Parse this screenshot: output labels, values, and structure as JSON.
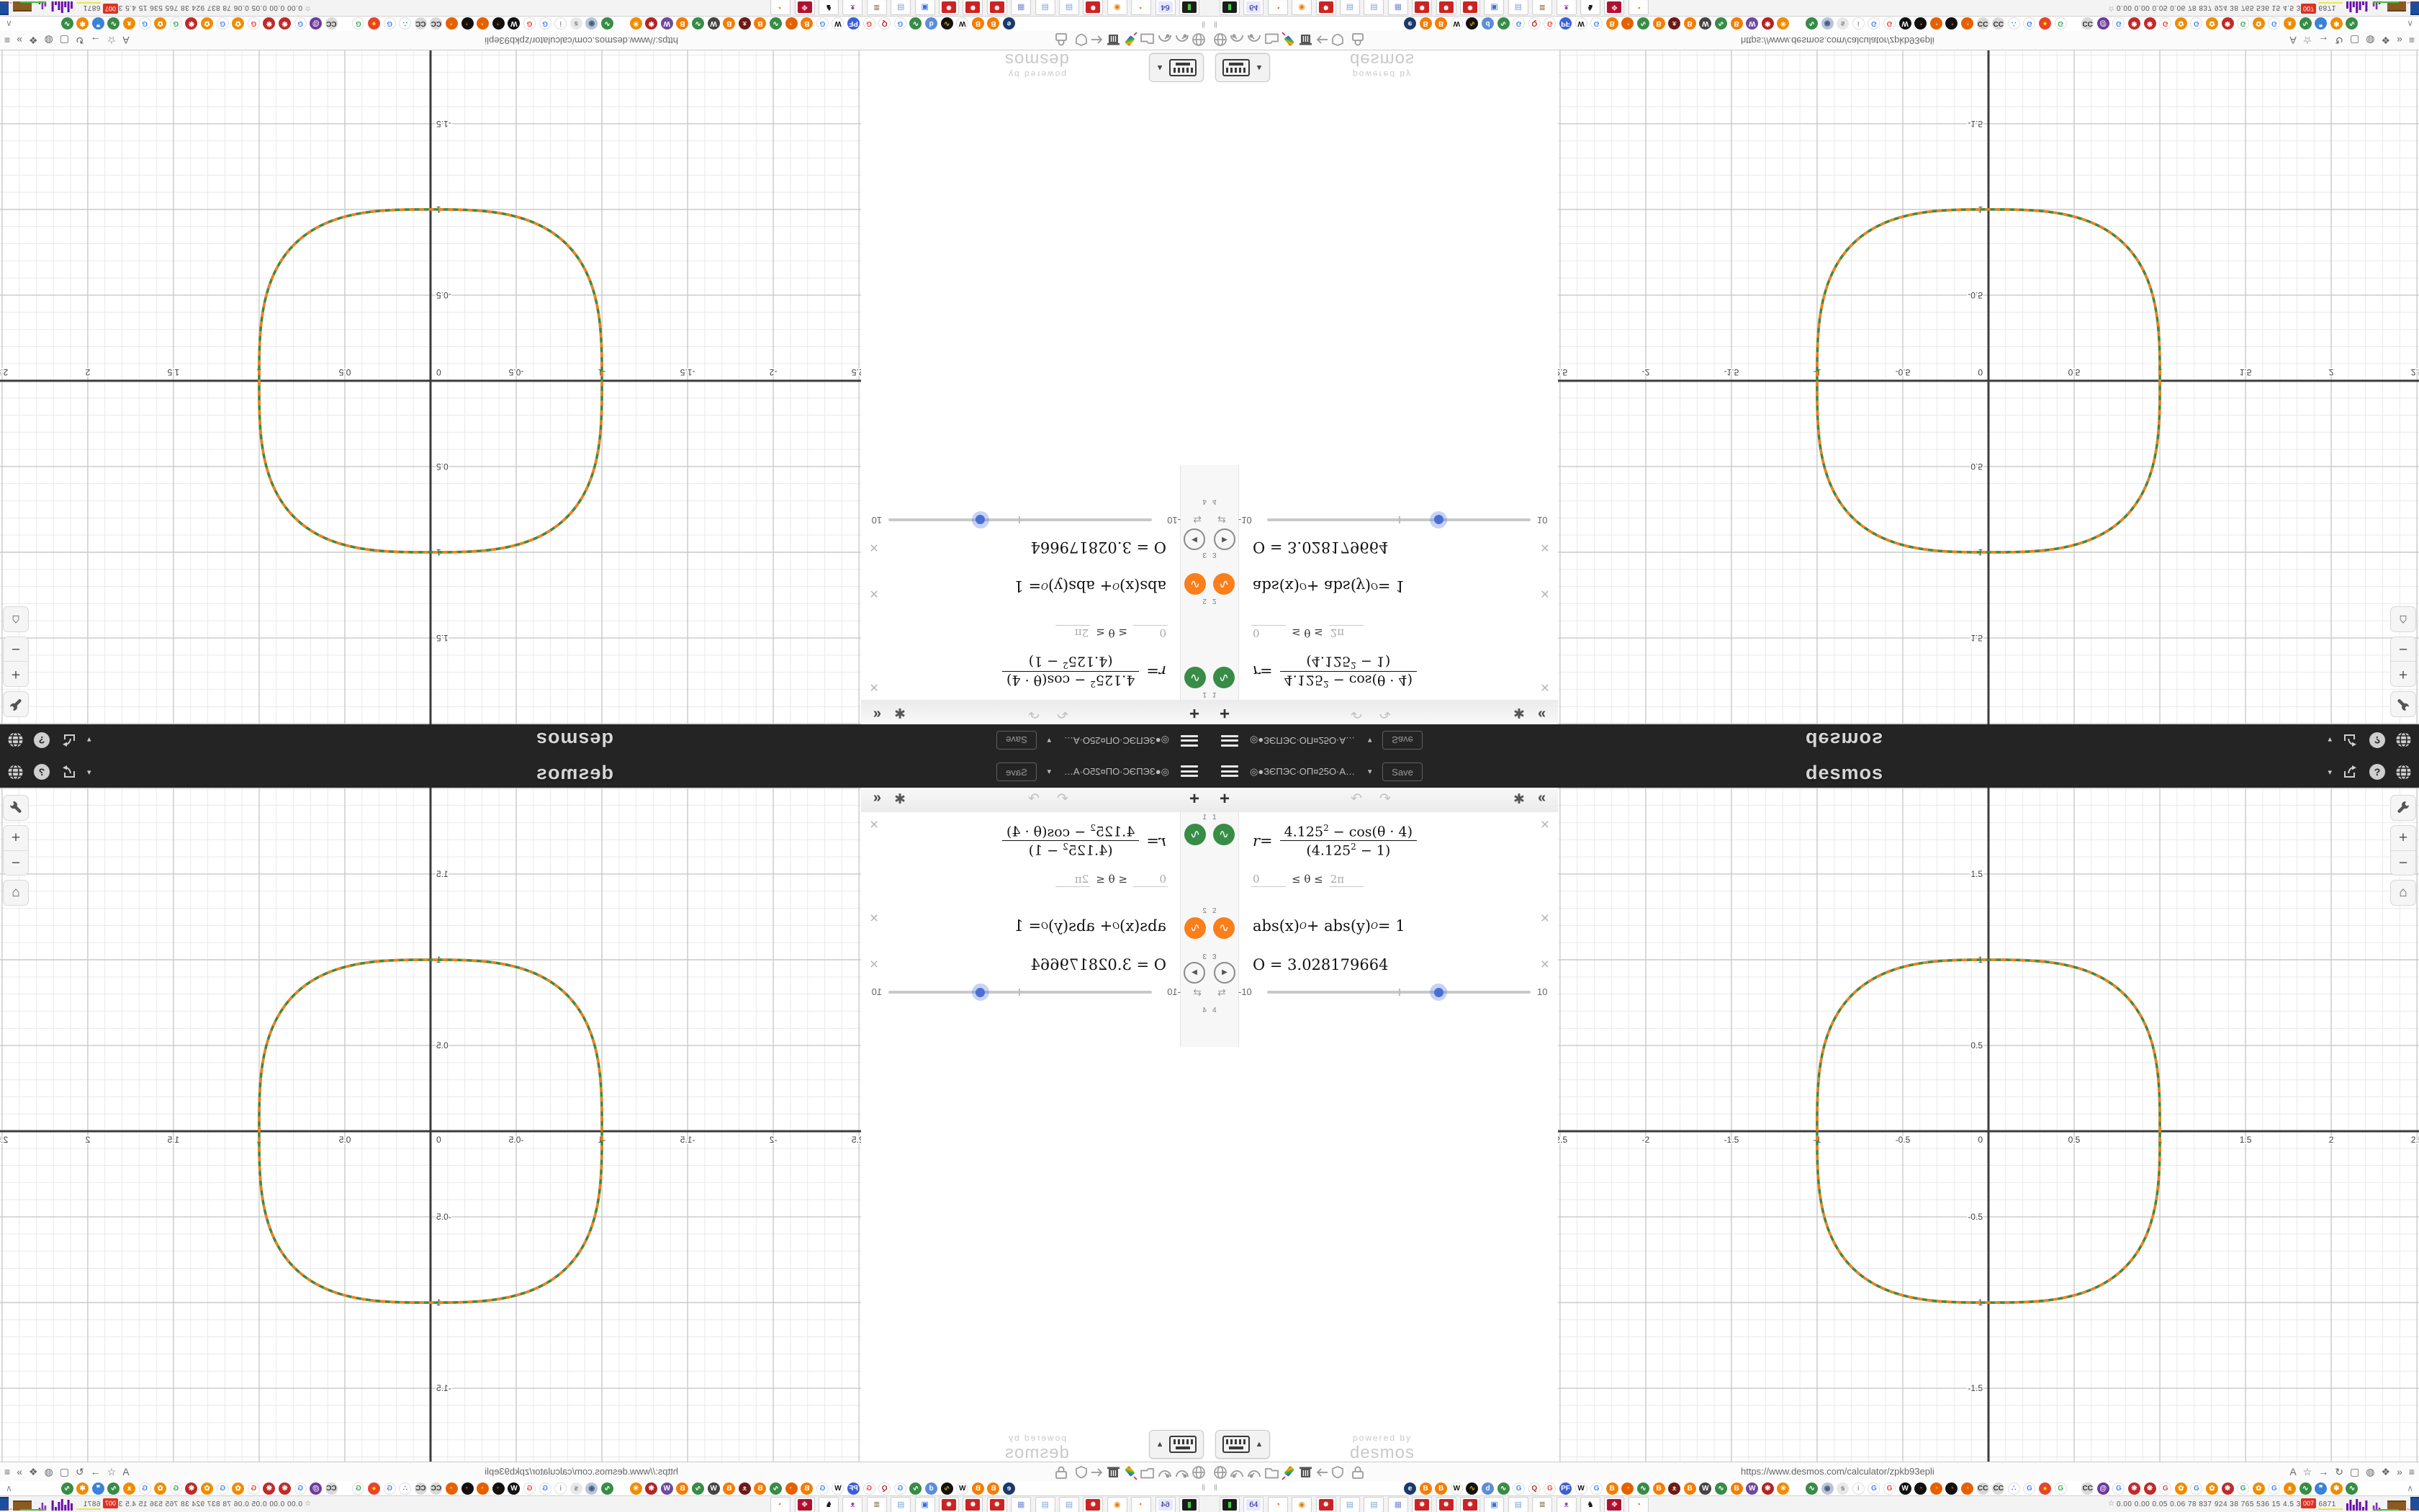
{
  "header": {
    "title": "◎●ЗЄПЭС·ОП¤25О·А…",
    "save_label": "Save",
    "logo": "desmos",
    "right_icons": [
      "account-caret",
      "share",
      "help",
      "language-globe"
    ]
  },
  "panel": {
    "toolbar": {
      "add": "+",
      "undo": "↶",
      "redo": "↷",
      "gear": "✱",
      "collapse": "«"
    },
    "rows": {
      "r1": {
        "index": "1",
        "full_text": "r = (4.125² − cos(θ·4)) / (4.125² − 1)",
        "lhs": "r",
        "eq": " = ",
        "num_base": "4.125",
        "num_sup": "2",
        "num_rest": " − cos(θ · 4)",
        "den_base": "(4.125",
        "den_sup": "2",
        "den_rest": " − 1)",
        "icon": "∿",
        "domain_min": "0",
        "domain_mid": "≤ θ ≤",
        "domain_max": "2π"
      },
      "r2": {
        "index": "2",
        "full_text": "abs(x)^O + abs(y)^O = 1",
        "a": "abs(x)",
        "asup": "O",
        "b": " + abs(y)",
        "bsup": "O",
        "c": " = 1",
        "icon": "∿"
      },
      "r3": {
        "index": "3",
        "value_text": "O = 3.028179664",
        "play_icon": "▶",
        "loop_icon": "⇄"
      },
      "r4": {
        "index": "4"
      }
    },
    "slider": {
      "min": -10,
      "max": 10,
      "value": 3.028179664,
      "min_label": "-10",
      "max_label": "10"
    },
    "close_glyph": "×",
    "watermark_small": "powered by",
    "watermark_big": "desmos"
  },
  "graph_buttons": {
    "zoom_in": "+",
    "zoom_out": "−",
    "home": "⌂"
  },
  "chart_data": {
    "type": "line",
    "equations": [
      {
        "label": "r = (4.125² − cos(θ·4)) / (4.125² − 1)",
        "color": "#388c46",
        "domain": "0 ≤ θ ≤ 2π"
      },
      {
        "label": "abs(x)^O + abs(y)^O = 1",
        "color": "#fa7e19"
      }
    ],
    "parameter": {
      "name": "O",
      "value": 3.028179664,
      "min": -10,
      "max": 10
    },
    "exponent": 3.028179664,
    "xlim": [
      -2.512,
      2.512
    ],
    "ylim": [
      -1.929,
      2.004
    ],
    "x_tick_labels": [
      -2.5,
      -2,
      -1.5,
      -1,
      -0.5,
      0.5,
      1,
      1.5,
      2,
      2.5
    ],
    "y_tick_labels": [
      1.5,
      1,
      0.5,
      -0.5,
      -1,
      -1.5
    ],
    "origin_label": "0",
    "grid": {
      "minor_step": 0.1,
      "major_step": 0.5,
      "shown": true
    },
    "colors": {
      "axis": "#3c3c3c",
      "major": "#c9c9c9",
      "minor": "#e9e9e9",
      "label": "#3d3d3d",
      "curve_green": "#388c46",
      "curve_orange": "#fa7e19"
    }
  },
  "statusbar": {
    "url": "https://www.desmos.com/calculator/zpkb93epli",
    "left_icons": [
      "globe",
      "gauge",
      "gauge",
      "folder",
      "rainbow-pin",
      "trash",
      "back-arrow",
      "shield",
      "lock"
    ],
    "right_icons": [
      {
        "glyph": "A",
        "name": "translate-icon"
      },
      {
        "glyph": "☆",
        "name": "bookmark-star-icon"
      },
      {
        "glyph": "→",
        "name": "forward-icon"
      },
      {
        "glyph": "↻",
        "name": "reload-icon"
      },
      {
        "glyph": "▢",
        "name": "reader-view-icon"
      },
      {
        "glyph": "◍",
        "name": "extensions-globe-icon"
      },
      {
        "glyph": "❖",
        "name": "puzzle-extension-icon"
      },
      {
        "glyph": "»",
        "name": "overflow-chevron-icon"
      },
      {
        "glyph": "≡",
        "name": "browser-menu-icon"
      }
    ]
  },
  "bookmarks": {
    "grip": "‖",
    "chevron": "∧",
    "start_x": 270,
    "step": 21.6,
    "favicons": [
      {
        "b": "#1b3a6b",
        "t": "e",
        "c": "#fff"
      },
      {
        "b": "#f57d00",
        "t": "B",
        "c": "#fff"
      },
      {
        "b": "#f57d00",
        "t": "B",
        "c": "#fff"
      },
      {
        "b": "#ffffff",
        "t": "W",
        "c": "#111",
        "o": 1
      },
      {
        "b": "#111111",
        "t": "∿",
        "c": "#d4a017"
      },
      {
        "b": "#5b8dd9",
        "t": "d",
        "c": "#fff"
      },
      {
        "b": "#388c46",
        "t": "∿",
        "c": "#fff"
      },
      {
        "b": "#ffffff",
        "t": "G",
        "c": "#4285f4",
        "o": 1
      },
      {
        "b": "#ffffff",
        "t": "Q",
        "c": "#b92b27",
        "o": 1
      },
      {
        "b": "#ffffff",
        "t": "G",
        "c": "#ea4335",
        "o": 1
      },
      {
        "b": "#3b5fd9",
        "t": "PF",
        "c": "#fff"
      },
      {
        "b": "#ffffff",
        "t": "W",
        "c": "#111",
        "o": 1
      },
      {
        "b": "#ffffff",
        "t": "G",
        "c": "#4285f4",
        "o": 1
      },
      {
        "b": "#f57d00",
        "t": "B",
        "c": "#fff"
      },
      {
        "b": "#e66000",
        "t": "◔",
        "c": "#ffd27d"
      },
      {
        "b": "#388c46",
        "t": "∿",
        "c": "#fff"
      },
      {
        "b": "#f57d00",
        "t": "B",
        "c": "#fff"
      },
      {
        "b": "#6b1a1a",
        "t": "ᴥ",
        "c": "#e8c8a8"
      },
      {
        "b": "#f57d00",
        "t": "B",
        "c": "#fff"
      },
      {
        "b": "#464342",
        "t": "W",
        "c": "#fff"
      },
      {
        "b": "#388c46",
        "t": "∿",
        "c": "#fff"
      },
      {
        "b": "#f57d00",
        "t": "B",
        "c": "#fff"
      },
      {
        "b": "#6d4a9e",
        "t": "W",
        "c": "#fff"
      },
      {
        "b": "#b32424",
        "t": "❋",
        "c": "#fff"
      },
      {
        "b": "#f08c00",
        "t": "✳",
        "c": "#fff"
      },
      {
        "b": "#388c46",
        "t": "∿",
        "c": "#fff",
        "g": 18
      },
      {
        "b": "#b8c4d8",
        "t": "◉",
        "c": "#445a7a"
      },
      {
        "b": "#e8e8e8",
        "t": "s",
        "c": "#777"
      },
      {
        "b": "#ffffff",
        "t": "i",
        "c": "#999",
        "o": 1
      },
      {
        "b": "#ffffff",
        "t": "G",
        "c": "#4285f4",
        "o": 1
      },
      {
        "b": "#ffffff",
        "t": "G",
        "c": "#ea4335",
        "o": 1
      },
      {
        "b": "#111111",
        "t": "W",
        "c": "#fff"
      },
      {
        "b": "#111111",
        "t": "◔",
        "c": "#e66000"
      },
      {
        "b": "#e66000",
        "t": "◔",
        "c": "#ffd27d"
      },
      {
        "b": "#111111",
        "t": "◔",
        "c": "#e66000"
      },
      {
        "b": "#e66000",
        "t": "◔",
        "c": "#ffd27d"
      },
      {
        "b": "#d8d8d8",
        "t": "CC",
        "c": "#333"
      },
      {
        "b": "#d8d8d8",
        "t": "CC",
        "c": "#333"
      },
      {
        "b": "#ffffff",
        "t": "∴",
        "c": "#3b6fd9",
        "o": 1
      },
      {
        "b": "#ffffff",
        "t": "G",
        "c": "#4285f4",
        "o": 1
      },
      {
        "b": "#e8442c",
        "t": "●",
        "c": "#ffd700"
      },
      {
        "b": "#ffffff",
        "t": "G",
        "c": "#34a853",
        "o": 1
      },
      {
        "b": "#d8d8d8",
        "t": "CC",
        "c": "#333",
        "g": 16
      },
      {
        "b": "#6d3a9e",
        "t": "@",
        "c": "#fff"
      },
      {
        "b": "#ffffff",
        "t": "G",
        "c": "#4285f4",
        "o": 1
      },
      {
        "b": "#c02a2a",
        "t": "❋",
        "c": "#fff"
      },
      {
        "b": "#c02a2a",
        "t": "❋",
        "c": "#fff"
      },
      {
        "b": "#ffffff",
        "t": "G",
        "c": "#ea4335",
        "o": 1
      },
      {
        "b": "#f08c00",
        "t": "✿",
        "c": "#fff"
      },
      {
        "b": "#ffffff",
        "t": "G",
        "c": "#4285f4",
        "o": 1
      },
      {
        "b": "#f08c00",
        "t": "✿",
        "c": "#fff"
      },
      {
        "b": "#c02a2a",
        "t": "❋",
        "c": "#fff"
      },
      {
        "b": "#ffffff",
        "t": "G",
        "c": "#34a853",
        "o": 1
      },
      {
        "b": "#f08c00",
        "t": "✿",
        "c": "#fff"
      },
      {
        "b": "#ffffff",
        "t": "G",
        "c": "#4285f4",
        "o": 1
      },
      {
        "b": "#f08c00",
        "t": "ᴥ",
        "c": "#fff"
      },
      {
        "b": "#388c46",
        "t": "∿",
        "c": "#fff"
      },
      {
        "b": "#3b82d9",
        "t": "❞",
        "c": "#fff"
      },
      {
        "b": "#f08c00",
        "t": "✱",
        "c": "#fff"
      },
      {
        "b": "#388c46",
        "t": "∿",
        "c": "#fff"
      }
    ]
  },
  "taskbar": {
    "start_x": 14,
    "step": 33.4,
    "icons": [
      {
        "b": "#1c1c1c",
        "t": "▮",
        "c": "#44cc44"
      },
      {
        "b": "#e8e8ff",
        "t": "64",
        "c": "#22229a"
      },
      {
        "b": "#ffffff",
        "t": "◔",
        "c": "#e66000"
      },
      {
        "b": "#ffffff",
        "t": "◉",
        "c": "#e87d0d"
      },
      {
        "b": "#cc2222",
        "t": "✸",
        "c": "#ffffff"
      },
      {
        "b": "#ffffff",
        "t": "▤",
        "c": "#7aa7d9"
      },
      {
        "b": "#ffffff",
        "t": "▤",
        "c": "#7aa7d9"
      },
      {
        "b": "#ffffff",
        "t": "▦",
        "c": "#7a8fd9"
      },
      {
        "b": "#cc2222",
        "t": "✸",
        "c": "#ffffff"
      },
      {
        "b": "#cc2222",
        "t": "✸",
        "c": "#ffffff"
      },
      {
        "b": "#cc2222",
        "t": "✸",
        "c": "#ffffff"
      },
      {
        "b": "#ffffff",
        "t": "▣",
        "c": "#3b6fd9"
      },
      {
        "b": "#ffffff",
        "t": "▤",
        "c": "#7aa7d9"
      },
      {
        "b": "#ffffff",
        "t": "≣",
        "c": "#8a6a3a"
      },
      {
        "b": "#ffffff",
        "t": "ᴥ",
        "c": "#a03ab0"
      },
      {
        "b": "#ffffff",
        "t": "♞",
        "c": "#111111"
      },
      {
        "b": "#b01030",
        "t": "❖",
        "c": "#ffdddd"
      },
      {
        "b": "#ffffff",
        "t": "◔",
        "c": "#e66000"
      }
    ],
    "tray": {
      "star": "☆",
      "numbers": "0.00 0.00 0.05 0.06 78 837 924 38 765 536 15 4.5 32 25 6871",
      "badge": "007",
      "hist_heights": [
        10,
        15,
        8,
        16,
        12,
        5,
        14
      ],
      "hist_mini": [
        7,
        11,
        4
      ],
      "blocks": [
        {
          "c": "#8a5a22",
          "w": 26,
          "h": 12
        },
        {
          "c": "#1d4e9e",
          "w": 32,
          "h": 17
        },
        {
          "c": "#8a5a22",
          "w": 28,
          "h": 19
        }
      ],
      "squiggle": "~≈~"
    }
  }
}
